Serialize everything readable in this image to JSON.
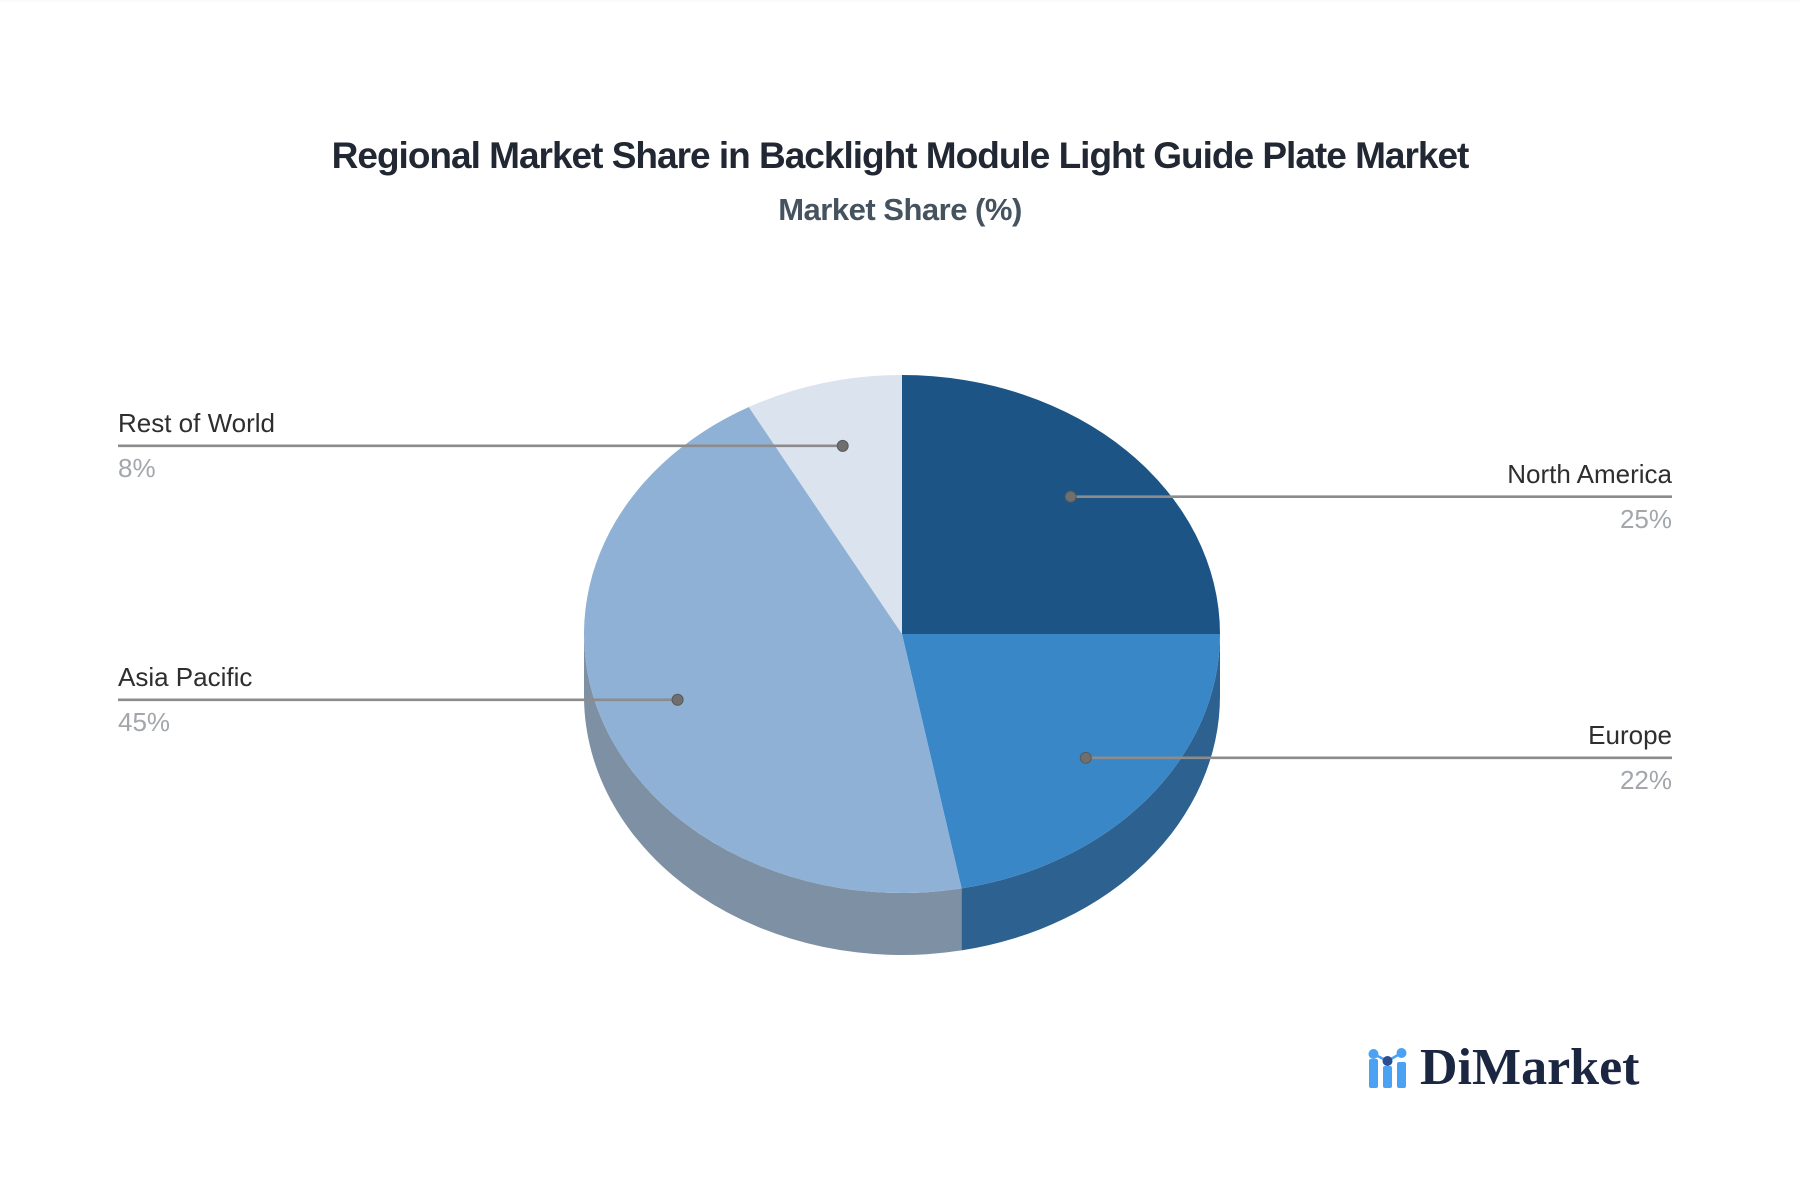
{
  "header": {
    "title": "Regional Market Share in Backlight Module Light Guide Plate Market",
    "subtitle": "Market Share (%)"
  },
  "chart_data": {
    "type": "pie",
    "style": "3d",
    "title": "Regional Market Share in Backlight Module Light Guide Plate Market",
    "subtitle": "Market Share (%)",
    "unit": "%",
    "start_angle_deg": 0,
    "direction": "clockwise",
    "labels": [
      "North America",
      "Europe",
      "Asia Pacific",
      "Rest of World"
    ],
    "values": [
      25,
      22,
      45,
      8
    ],
    "display_values": [
      "25%",
      "22%",
      "45%",
      "8%"
    ],
    "slice_colors": [
      "#1c5585",
      "#3a87c8",
      "#8fb1d6",
      "#dbe3ee"
    ],
    "side_colors": [
      "#153f63",
      "#2c6190",
      "#7e91a4",
      "#aab5c3"
    ],
    "callout_line_color": "#8c8c8c",
    "callout_dot_color": "#6f6f6f",
    "label_text_color": "#2e2e2e",
    "value_text_color": "#a3a7ab",
    "legend_position": "callout-labels"
  },
  "branding": {
    "logo_text": "DiMarket",
    "logo_icon": "bar-line-chart-icon",
    "logo_text_color": "#1b2741",
    "logo_accent_color": "#4ba2f2",
    "logo_dot_color": "#2b4d93"
  }
}
